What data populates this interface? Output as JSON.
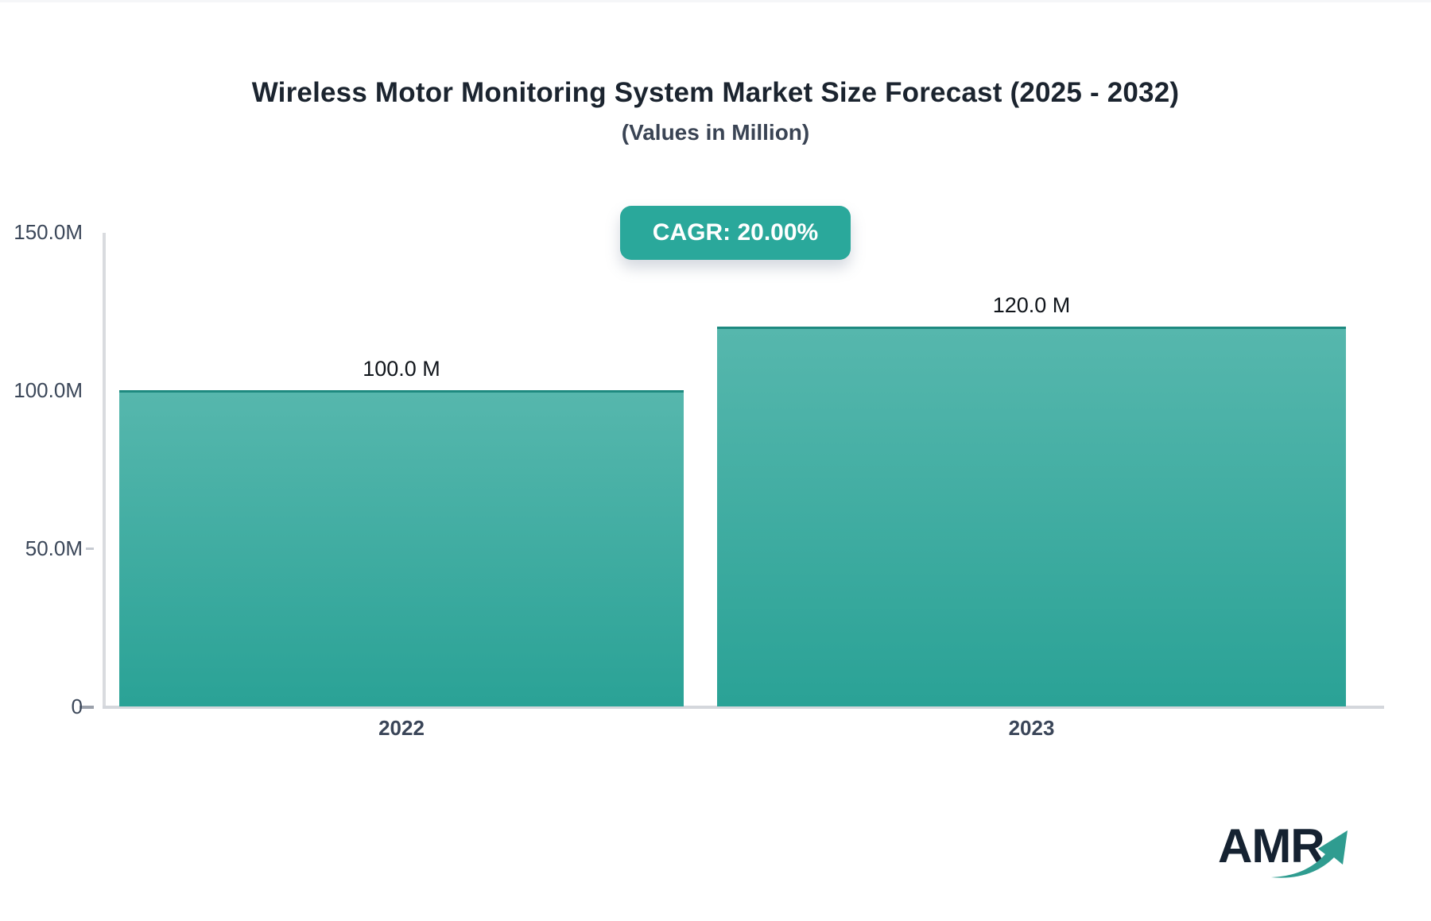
{
  "page": {
    "title": "Wireless Motor Monitoring System Market Size Forecast (2025 - 2032)",
    "subtitle": "(Values in Million)",
    "cagr_badge_label": "CAGR: 20.00%",
    "logo_text": "AMR"
  },
  "chart_data": {
    "type": "bar",
    "title": "Wireless Motor Monitoring System Market Size Forecast (2025 - 2032)",
    "subtitle": "(Values in Million)",
    "cagr_percent": 20.0,
    "categories": [
      "2022",
      "2023"
    ],
    "values": [
      100.0,
      120.0
    ],
    "value_labels": [
      "100.0 M",
      "120.0 M"
    ],
    "y_ticks": [
      {
        "label": "150.0M",
        "value": 150
      },
      {
        "label": "100.0M",
        "value": 100
      },
      {
        "label": "50.0M",
        "value": 50
      },
      {
        "label": "0",
        "value": 0
      }
    ],
    "ylim": [
      0,
      150
    ],
    "xlabel": "",
    "ylabel": "",
    "grid": false,
    "legend": "none",
    "colors": {
      "bar_gradient_top": "#56b7ad",
      "bar_gradient_bottom": "#2aa296",
      "bar_top_border": "#1e8a80",
      "badge_background": "#2aa89b",
      "badge_text": "#ffffff",
      "axis_line": "#d9dbdf",
      "label_text": "#3b4759",
      "logo_arrow": "#2f9c90"
    }
  }
}
